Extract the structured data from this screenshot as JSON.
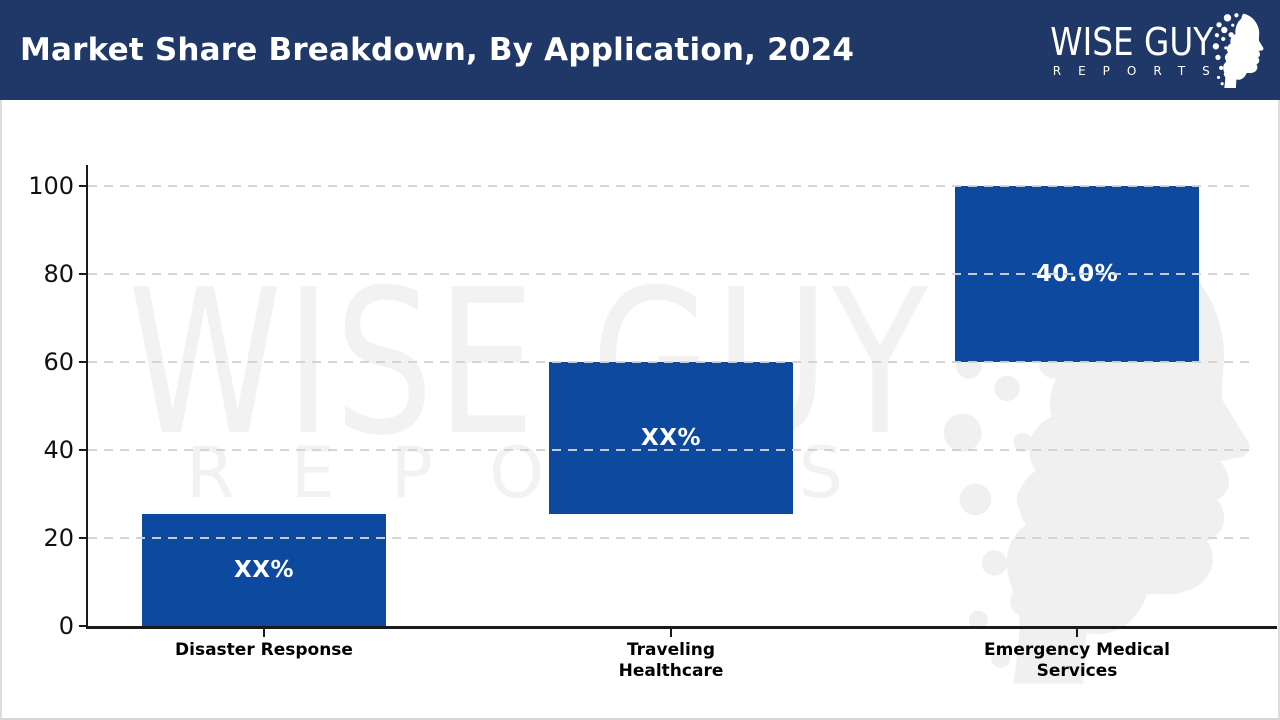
{
  "header": {
    "title": "Market Share Breakdown, By Application, 2024",
    "bg_color": "#203867",
    "logo": {
      "wordmark": "WISE GUY",
      "subtext": "REPORTS",
      "head_icon": "dotted-face-profile"
    }
  },
  "watermark": {
    "wordmark": "WISE GUY",
    "subtext": "REPORTS",
    "head_icon": "dotted-face-profile",
    "color": "#f2f2f2"
  },
  "chart_data": {
    "type": "bar",
    "subtype": "floating-segment-waterfall",
    "title": "",
    "xlabel": "",
    "ylabel": "",
    "categories": [
      "Disaster Response",
      "Traveling Healthcare",
      "Emergency Medical Services"
    ],
    "categories_lines": [
      [
        "Disaster Response"
      ],
      [
        "Traveling",
        "Healthcare"
      ],
      [
        "Emergency Medical",
        "Services"
      ]
    ],
    "segments": [
      {
        "category": "Disaster Response",
        "start": 0,
        "end": 25.5,
        "value_est": 25.5,
        "label": "XX%"
      },
      {
        "category": "Traveling Healthcare",
        "start": 25.5,
        "end": 60,
        "value_est": 34.5,
        "label": "XX%"
      },
      {
        "category": "Emergency Medical Services",
        "start": 60,
        "end": 100,
        "value_est": 40.0,
        "label": "40.0%"
      }
    ],
    "yticks": [
      0,
      20,
      40,
      60,
      80,
      100
    ],
    "ylim": [
      0,
      105
    ],
    "bar_color": "#0d4a9f",
    "bar_label_color": "#ffffff",
    "grid": {
      "show": true,
      "orientation": "horizontal",
      "style": "dashed",
      "color": "#d2d2d2",
      "drawn_over_bars": true
    },
    "legend": null,
    "plot_bg": "#ffffff"
  }
}
